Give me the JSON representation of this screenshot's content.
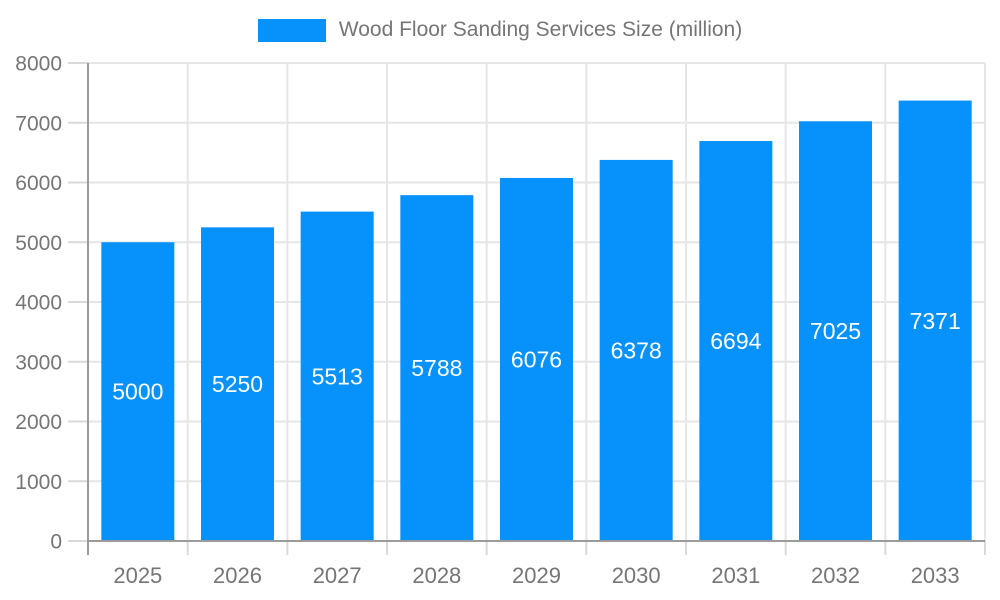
{
  "legend": {
    "label": "Wood Floor Sanding Services Size (million)"
  },
  "colors": {
    "bar": "#0692fa",
    "bar_label": "#ffffff",
    "grid": "#e6e6e6",
    "tick": "#d9d9d9",
    "axis": "#9b9b9b",
    "text": "#757575"
  },
  "chart_data": {
    "type": "bar",
    "title": "Wood Floor Sanding Services Size (million)",
    "series_name": "Wood Floor Sanding Services Size (million)",
    "categories": [
      "2025",
      "2026",
      "2027",
      "2028",
      "2029",
      "2030",
      "2031",
      "2032",
      "2033"
    ],
    "values": [
      5000,
      5250,
      5513,
      5788,
      6076,
      6378,
      6694,
      7025,
      7371
    ],
    "bar_value_labels": [
      "5000",
      "5250",
      "5513",
      "5788",
      "6076",
      "6378",
      "6694",
      "7025",
      "7371"
    ],
    "xlabel": "",
    "ylabel": "",
    "ylim": [
      0,
      8000
    ],
    "ytick_step": 1000,
    "ytick_labels": [
      "0",
      "1000",
      "2000",
      "3000",
      "4000",
      "5000",
      "6000",
      "7000",
      "8000"
    ],
    "grid": true,
    "legend_position": "top",
    "bar_color": "#0692fa"
  }
}
